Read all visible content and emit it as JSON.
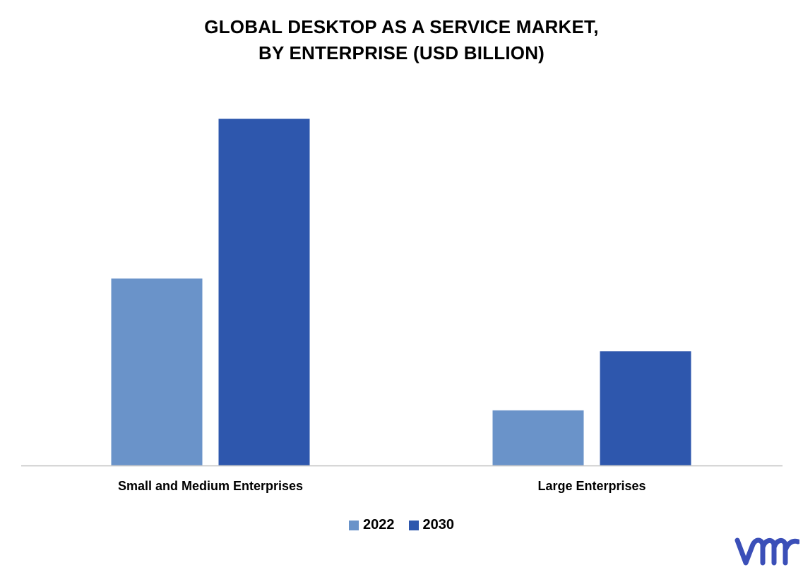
{
  "chart_data": {
    "type": "bar",
    "title_lines": [
      "GLOBAL DESKTOP AS A SERVICE MARKET,",
      "BY ENTERPRISE (USD BILLION)"
    ],
    "categories": [
      "Small and Medium Enterprises",
      "Large Enterprises"
    ],
    "series": [
      {
        "name": "2022",
        "values": [
          5.4,
          1.6
        ],
        "color": "#6a93c9"
      },
      {
        "name": "2030",
        "values": [
          10.0,
          3.3
        ],
        "color": "#2e57ad"
      }
    ],
    "ylim": [
      0,
      10.0
    ],
    "grid": false,
    "legend_position": "bottom"
  },
  "logo": {
    "name": "vmr-logo",
    "color": "#3b4fb8"
  }
}
